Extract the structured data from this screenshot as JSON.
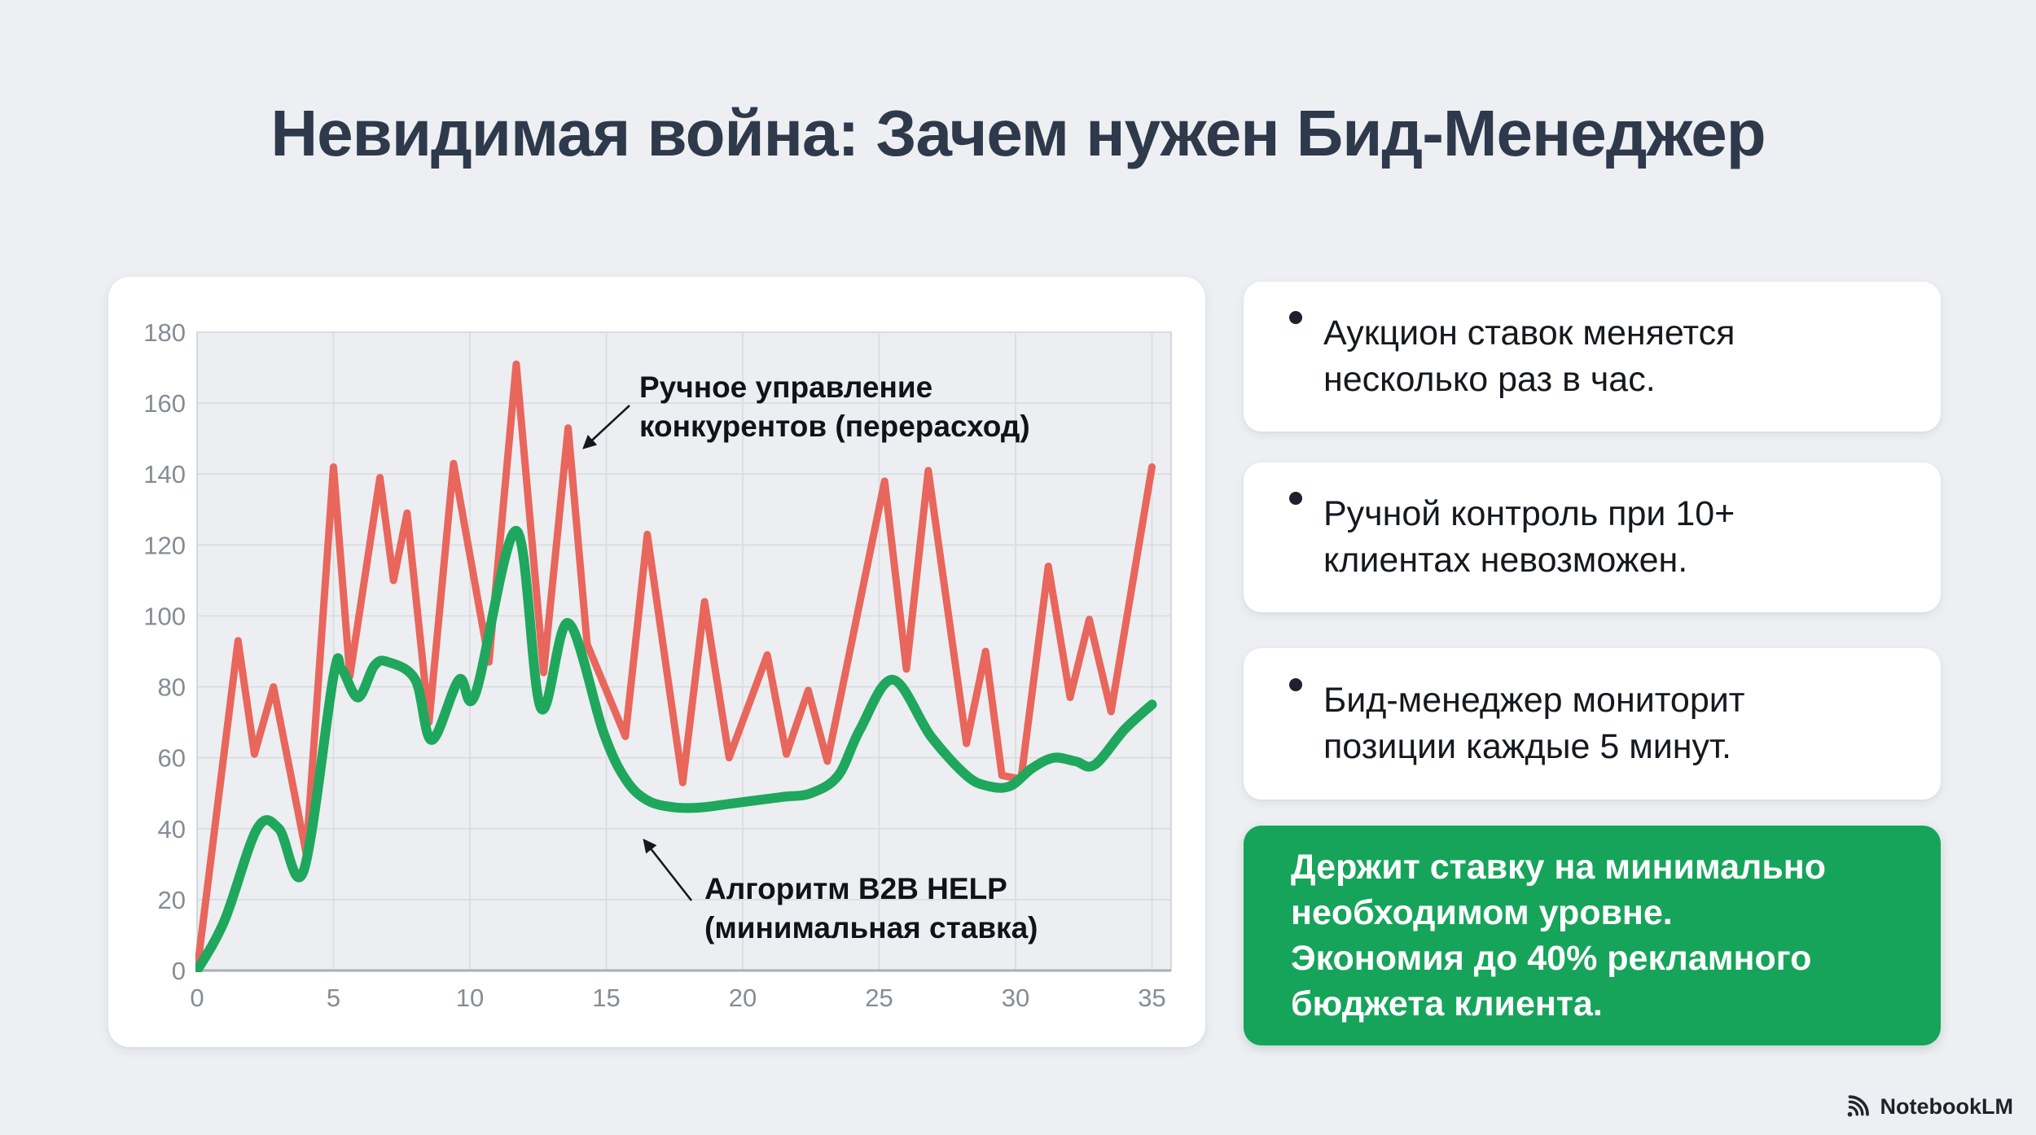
{
  "title": "Невидимая война: Зачем нужен Бид-Менеджер",
  "chart_data": {
    "type": "line",
    "title": "",
    "xlabel": "",
    "ylabel": "",
    "xlim": [
      0,
      35
    ],
    "ylim": [
      0,
      180
    ],
    "x_ticks": [
      0,
      5,
      10,
      15,
      20,
      25,
      30,
      35
    ],
    "y_ticks": [
      0,
      20,
      40,
      60,
      80,
      100,
      120,
      140,
      160,
      180
    ],
    "grid": true,
    "legend_position": "none",
    "series": [
      {
        "name": "Ручное управление конкурентов (перерасход)",
        "color": "#E8665C",
        "stroke_width": 9,
        "smooth": false,
        "points": [
          [
            0,
            0
          ],
          [
            1.5,
            93
          ],
          [
            2.1,
            61
          ],
          [
            2.8,
            80
          ],
          [
            4,
            33
          ],
          [
            5,
            142
          ],
          [
            5.6,
            83
          ],
          [
            6.7,
            139
          ],
          [
            7.2,
            110
          ],
          [
            7.7,
            129
          ],
          [
            8.5,
            70
          ],
          [
            9.4,
            143
          ],
          [
            10.7,
            87
          ],
          [
            11.7,
            171
          ],
          [
            12.7,
            84
          ],
          [
            13.6,
            153
          ],
          [
            14.3,
            92
          ],
          [
            15.7,
            66
          ],
          [
            16.5,
            123
          ],
          [
            17.8,
            53
          ],
          [
            18.6,
            104
          ],
          [
            19.5,
            60
          ],
          [
            20.9,
            89
          ],
          [
            21.6,
            61
          ],
          [
            22.4,
            79
          ],
          [
            23.1,
            59
          ],
          [
            25.2,
            138
          ],
          [
            26,
            85
          ],
          [
            26.8,
            141
          ],
          [
            28.2,
            64
          ],
          [
            28.9,
            90
          ],
          [
            29.5,
            55
          ],
          [
            30.2,
            54
          ],
          [
            31.2,
            114
          ],
          [
            32,
            77
          ],
          [
            32.7,
            99
          ],
          [
            33.5,
            73
          ],
          [
            35,
            142
          ]
        ]
      },
      {
        "name": "Алгоритм B2B HELP (минимальная ставка)",
        "color": "#1FA75D",
        "stroke_width": 12,
        "smooth": true,
        "points": [
          [
            0,
            0
          ],
          [
            1,
            14
          ],
          [
            2.2,
            40
          ],
          [
            3,
            40
          ],
          [
            3.9,
            28
          ],
          [
            5,
            83
          ],
          [
            5.3,
            85
          ],
          [
            5.9,
            77
          ],
          [
            6.5,
            86
          ],
          [
            7,
            87
          ],
          [
            8,
            82
          ],
          [
            8.6,
            65
          ],
          [
            9.6,
            82
          ],
          [
            10.2,
            78
          ],
          [
            11.7,
            124
          ],
          [
            12.6,
            74
          ],
          [
            13.6,
            98
          ],
          [
            14.9,
            67
          ],
          [
            15.7,
            54
          ],
          [
            16.5,
            48
          ],
          [
            17.5,
            46
          ],
          [
            18.5,
            46
          ],
          [
            19.5,
            47
          ],
          [
            20.5,
            48
          ],
          [
            21.5,
            49
          ],
          [
            22.5,
            50
          ],
          [
            23.5,
            55
          ],
          [
            24.3,
            68
          ],
          [
            25.5,
            82
          ],
          [
            26.9,
            66
          ],
          [
            28.2,
            55
          ],
          [
            29,
            52
          ],
          [
            29.8,
            52
          ],
          [
            30.6,
            57
          ],
          [
            31.4,
            60
          ],
          [
            32.2,
            59
          ],
          [
            32.9,
            58
          ],
          [
            34,
            68
          ],
          [
            35,
            75
          ]
        ]
      }
    ],
    "annotations": [
      {
        "lines": [
          "Ручное управление",
          "конкурентов (перерасход)"
        ]
      },
      {
        "lines": [
          "Алгоритм B2B HELP",
          "(минимальная ставка)"
        ]
      }
    ]
  },
  "cards": [
    {
      "text_lines": [
        "Аукцион ставок меняется",
        "несколько раз в час."
      ]
    },
    {
      "text_lines": [
        "Ручной контроль при 10+",
        "клиентах невозможен."
      ]
    },
    {
      "text_lines": [
        "Бид-менеджер мониторит",
        "позиции каждые 5 минут."
      ]
    }
  ],
  "highlight_card": {
    "bg_color": "#16A45A",
    "text_lines": [
      "Держит ставку на минимально",
      "необходимом уровне.",
      "Экономия до 40% рекламного",
      "бюджета клиента."
    ]
  },
  "watermark": {
    "label": "NotebookLM"
  },
  "colors": {
    "page_bg": "#EDEFF2",
    "plot_bg": "#ECEEF1",
    "grid": "#D8DBDF",
    "axis_line": "#A9AEB5",
    "plot_border": "#C9CDD2",
    "tick_text": "#868C95",
    "annotation_arrow": "#15181D"
  }
}
